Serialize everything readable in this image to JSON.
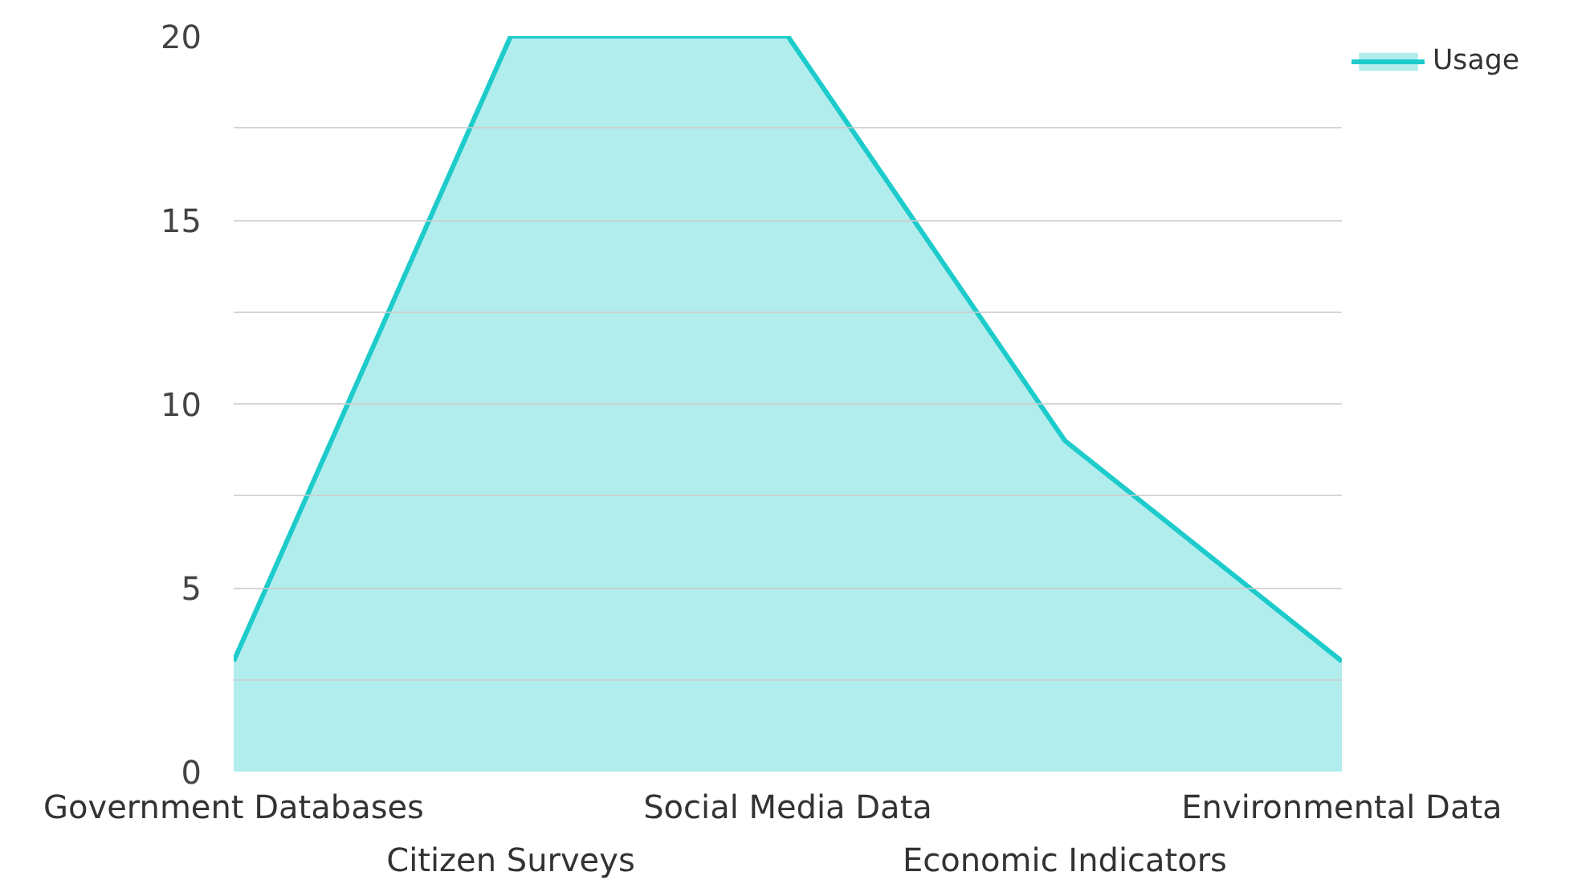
{
  "chart_data": {
    "type": "area",
    "categories": [
      "Government Databases",
      "Citizen Surveys",
      "Social Media Data",
      "Economic Indicators",
      "Environmental Data"
    ],
    "series": [
      {
        "name": "Usage",
        "color": "#1ecbcb",
        "values": [
          3,
          20,
          20,
          9,
          3
        ]
      }
    ],
    "ylim": [
      0,
      20
    ],
    "yticks": [
      0,
      {
        "value": 2.5,
        "label": null
      },
      5,
      {
        "value": 7.5,
        "label": null
      },
      10,
      {
        "value": 12.5,
        "label": null
      },
      15,
      {
        "value": 17.5,
        "label": null
      },
      20
    ],
    "grid": "y",
    "legend": "top right",
    "marker": "none",
    "line_style": "solid"
  }
}
